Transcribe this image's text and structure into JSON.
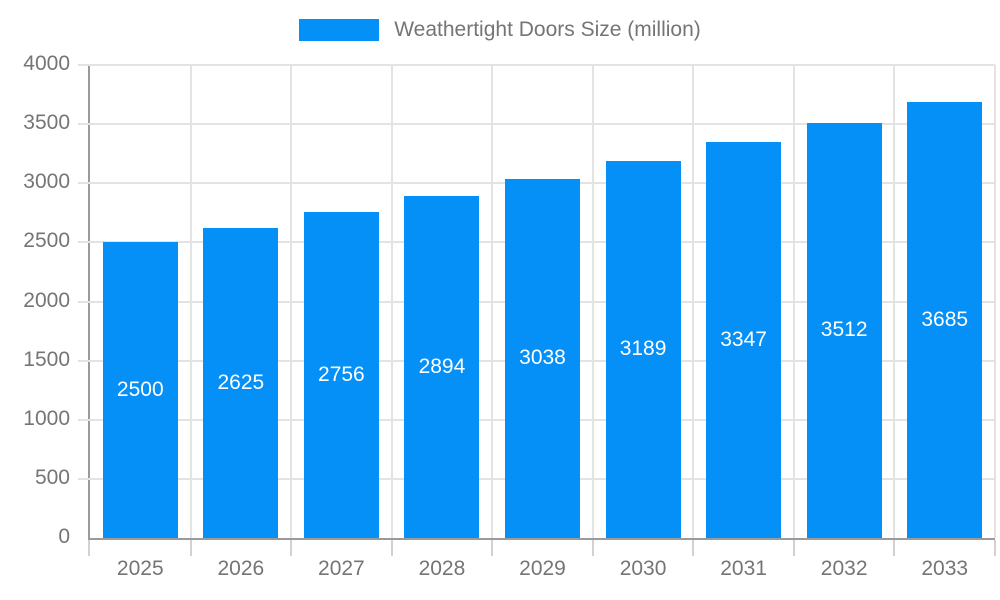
{
  "legend": {
    "label": "Weathertight Doors Size (million)"
  },
  "chart_data": {
    "type": "bar",
    "title": "Weathertight Doors Size (million)",
    "categories": [
      "2025",
      "2026",
      "2027",
      "2028",
      "2029",
      "2030",
      "2031",
      "2032",
      "2033"
    ],
    "values": [
      2500,
      2625,
      2756,
      2894,
      3038,
      3189,
      3347,
      3512,
      3685
    ],
    "xlabel": "",
    "ylabel": "",
    "ylim": [
      0,
      4000
    ],
    "ytick_step": 500,
    "yticks": [
      0,
      500,
      1000,
      1500,
      2000,
      2500,
      3000,
      3500,
      4000
    ],
    "grid": true,
    "legend_position": "top",
    "bar_color": "#0590f8",
    "bar_label_color": "#ffffff",
    "grid_color": "#e3e3e3",
    "axis_color": "#9a9a9a",
    "text_color": "#757575"
  }
}
